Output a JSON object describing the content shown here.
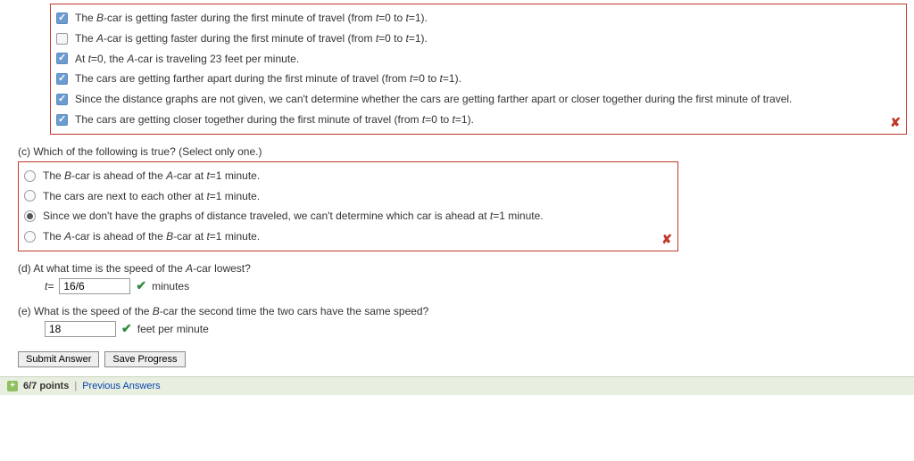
{
  "question_b": {
    "border_color": "#c0392b",
    "options": [
      {
        "checked": true,
        "text": "The <i>B</i>-car is getting faster during the first minute of travel (from <i>t</i>=0 to <i>t</i>=1)."
      },
      {
        "checked": false,
        "text": "The <i>A</i>-car is getting faster during the first minute of travel (from <i>t</i>=0 to <i>t</i>=1)."
      },
      {
        "checked": true,
        "text": "At <i>t</i>=0, the <i>A</i>-car is traveling 23 feet per minute."
      },
      {
        "checked": true,
        "text": "The cars are getting farther apart during the first minute of travel (from <i>t</i>=0 to <i>t</i>=1)."
      },
      {
        "checked": true,
        "text": "Since the distance graphs are not given, we can't determine whether the cars are getting farther apart or closer together during the first minute of travel."
      },
      {
        "checked": true,
        "text": "The cars are getting closer together during the first minute of travel (from <i>t</i>=0 to <i>t</i>=1)."
      }
    ],
    "result": "incorrect"
  },
  "question_c": {
    "prompt": "(c) Which of the following is true? (Select only one.)",
    "border_color": "#c0392b",
    "options": [
      {
        "selected": false,
        "text": "The <i>B</i>-car is ahead of the <i>A</i>-car at <i>t</i>=1 minute."
      },
      {
        "selected": false,
        "text": "The cars are next to each other at <i>t</i>=1 minute."
      },
      {
        "selected": true,
        "text": "Since we don't have the graphs of distance traveled, we can't determine which car is ahead at <i>t</i>=1 minute."
      },
      {
        "selected": false,
        "text": "The <i>A</i>-car is ahead of the <i>B</i>-car at <i>t</i>=1 minute."
      }
    ],
    "result": "incorrect"
  },
  "question_d": {
    "prompt": "(d) At what time is the speed of the <i>A</i>-car lowest?",
    "prefix": "t=",
    "value": "16/6",
    "unit": "minutes",
    "correct": true
  },
  "question_e": {
    "prompt": "(e) What is the speed of the <i>B</i>-car the second time the two cars have the same speed?",
    "value": "18",
    "unit": "feet per minute",
    "correct": true
  },
  "buttons": {
    "submit": "Submit Answer",
    "save": "Save Progress"
  },
  "footer": {
    "score": "6/7 points",
    "link": "Previous Answers"
  }
}
